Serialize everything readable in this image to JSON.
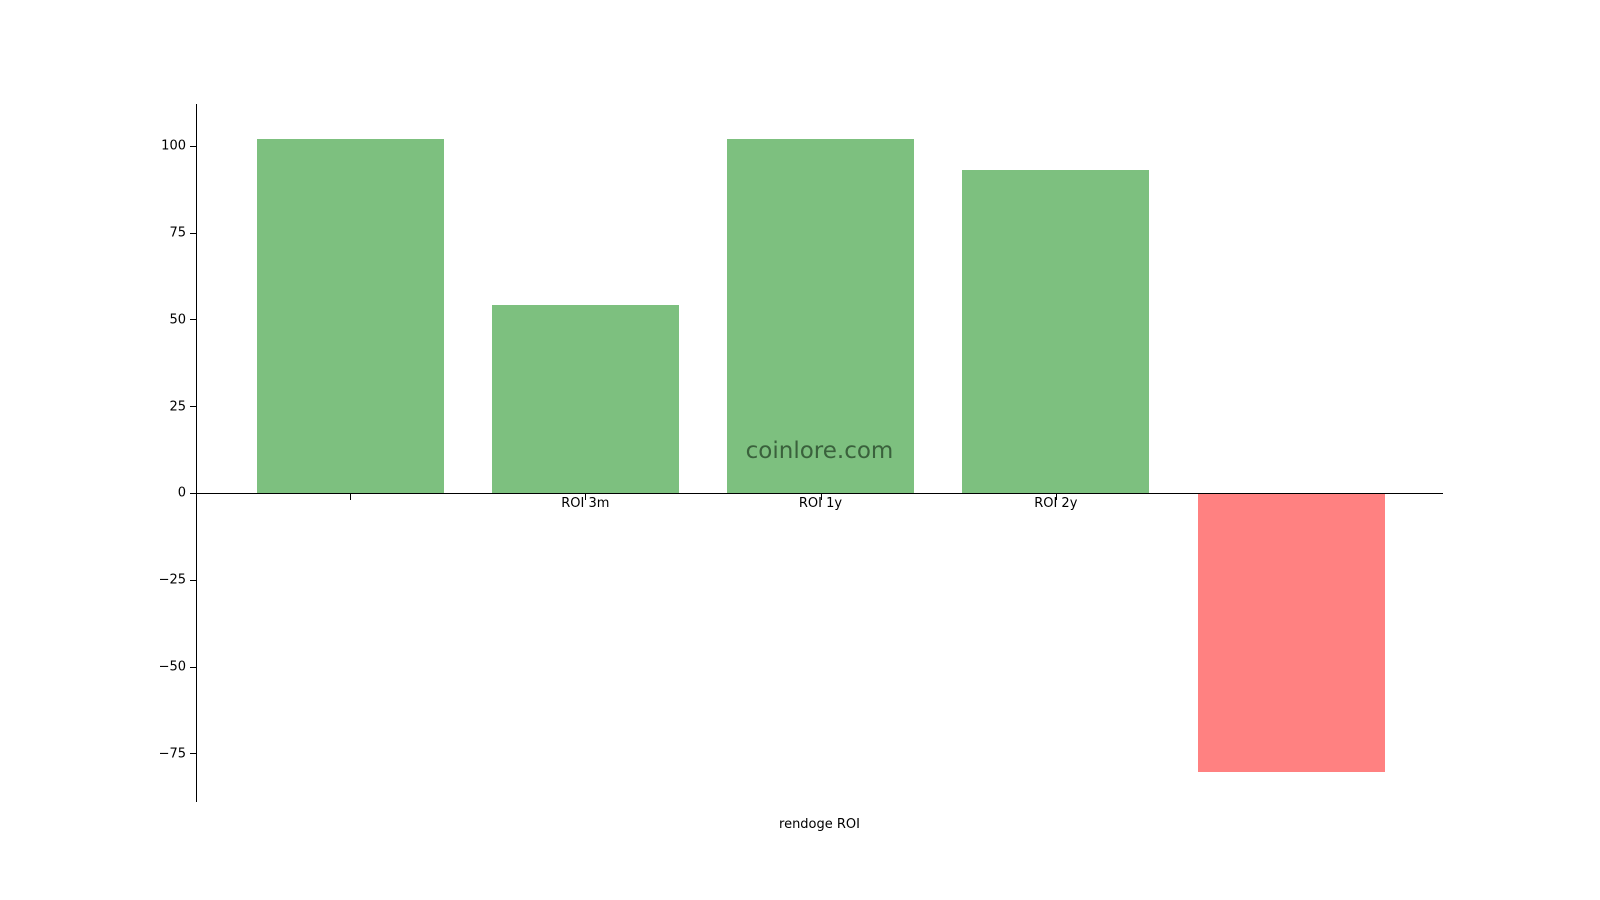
{
  "watermark_text": "coinlore.com",
  "xaxis_title": "rendoge ROI",
  "colors": {
    "positive_bar": "#7dc07f",
    "negative_bar": "#ff8181",
    "watermark": "#3a613c",
    "axis": "#000000",
    "background": "#ffffff"
  },
  "chart_data": {
    "type": "bar",
    "title": "",
    "xlabel": "rendoge ROI",
    "ylabel": "",
    "categories": [
      "",
      "ROI 3m",
      "ROI 1y",
      "ROI 2y",
      ""
    ],
    "values": [
      102,
      54,
      102,
      93,
      -80
    ],
    "bar_colors": [
      "#7dc07f",
      "#7dc07f",
      "#7dc07f",
      "#7dc07f",
      "#ff8181"
    ],
    "x_tick_visible": [
      true,
      true,
      true,
      true,
      false
    ],
    "yticks": [
      100,
      75,
      50,
      25,
      0,
      -25,
      -50,
      -75
    ],
    "ylim": [
      -89,
      112
    ],
    "grid": false,
    "legend_position": "none",
    "annotations": [
      "coinlore.com"
    ]
  }
}
